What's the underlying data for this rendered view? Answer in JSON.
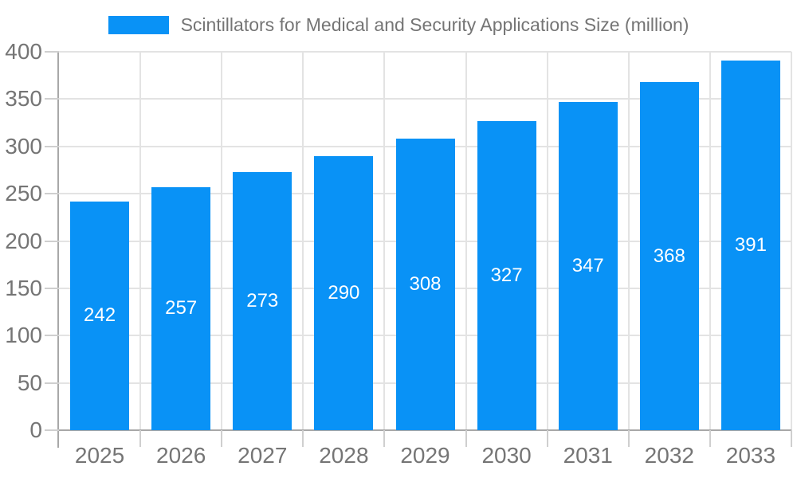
{
  "legend": {
    "label": "Scintillators for Medical and Security Applications Size (million)"
  },
  "colors": {
    "bar": "#0992F6",
    "bar_label": "#FFFFFF",
    "axis_text": "#757575",
    "axis_line": "#A8A8A8",
    "grid_line": "#E3E3E3",
    "tick": "#CFCFCF",
    "background": "#FFFFFF"
  },
  "chart_data": {
    "type": "bar",
    "title": "Scintillators for Medical and Security Applications Size (million)",
    "categories": [
      "2025",
      "2026",
      "2027",
      "2028",
      "2029",
      "2030",
      "2031",
      "2032",
      "2033"
    ],
    "values": [
      242,
      257,
      273,
      290,
      308,
      327,
      347,
      368,
      391
    ],
    "xlabel": "",
    "ylabel": "",
    "ylim": [
      0,
      400
    ],
    "ytick_step": 50,
    "yticks": [
      0,
      50,
      100,
      150,
      200,
      250,
      300,
      350,
      400
    ],
    "grid": true,
    "legend_position": "top",
    "value_labels": "centered inside bars"
  }
}
